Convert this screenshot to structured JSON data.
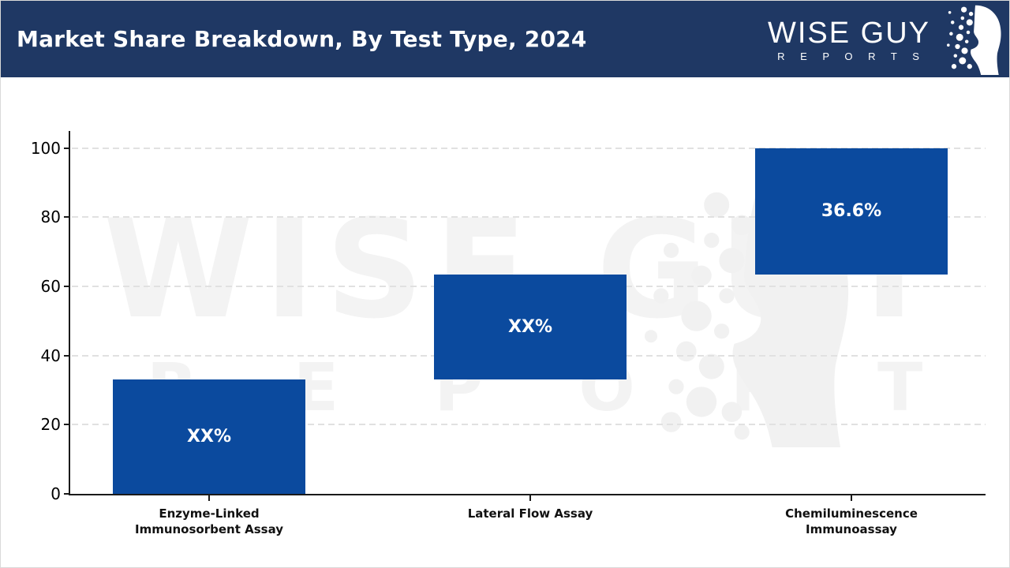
{
  "header": {
    "title": "Market Share Breakdown, By Test Type, 2024",
    "logo": {
      "line1": "WISE GUY",
      "line2": "R E P O R T S"
    }
  },
  "watermark": {
    "line1": "WISE GUY",
    "line2": "R E P O R T S"
  },
  "chart_data": {
    "type": "bar",
    "subtype": "floating-segment-breakdown",
    "title": "Market Share Breakdown, By Test Type, 2024",
    "categories": [
      "Enzyme-Linked Immunosorbent Assay",
      "Lateral Flow Assay",
      "Chemiluminescence Immunoassay"
    ],
    "series": [
      {
        "name": "Market Share (%)",
        "segments": [
          {
            "category": "Enzyme-Linked Immunosorbent Assay",
            "start": 0,
            "end": 33,
            "label": "XX%"
          },
          {
            "category": "Lateral Flow Assay",
            "start": 33,
            "end": 63.4,
            "label": "XX%"
          },
          {
            "category": "Chemiluminescence Immunoassay",
            "start": 63.4,
            "end": 100,
            "label": "36.6%"
          }
        ]
      }
    ],
    "xlabel": "",
    "ylabel": "",
    "ylim": [
      0,
      100
    ],
    "yticks": [
      0,
      20,
      40,
      60,
      80,
      100
    ],
    "grid": "horizontal-dashed",
    "legend": "none"
  },
  "colors": {
    "header_bg": "#1f3864",
    "bar": "#0b4a9e",
    "bar_label": "#ffffff",
    "grid": "#e1e1e1",
    "axis": "#1a1a1a",
    "watermark": "#f3f3f3",
    "page_border": "#d9d9d9"
  }
}
